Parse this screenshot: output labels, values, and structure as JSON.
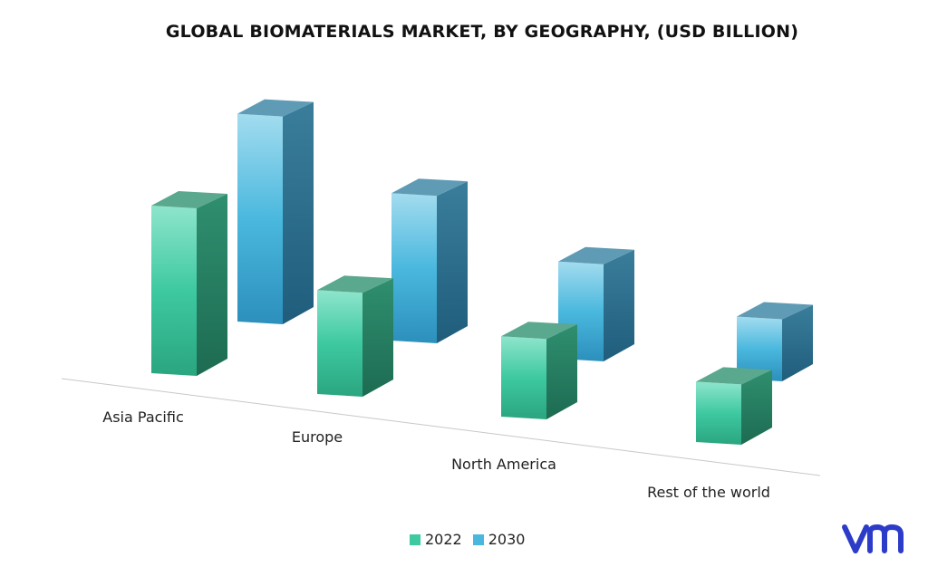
{
  "chart_data": {
    "type": "bar",
    "title": "GLOBAL BIOMATERIALS MARKET, BY GEOGRAPHY, (USD BILLION)",
    "categories": [
      "Asia Pacific",
      "Europe",
      "North America",
      "Rest of the world"
    ],
    "series": [
      {
        "name": "2022",
        "values": [
          100,
          62,
          48,
          36
        ],
        "color": "#3ec9a1"
      },
      {
        "name": "2030",
        "values": [
          124,
          88,
          58,
          37
        ],
        "color": "#4ab8de"
      }
    ],
    "xlabel": "",
    "ylabel": "",
    "grid": false,
    "legend_position": "bottom"
  },
  "brand": {
    "logo_text": "vm",
    "color": "#2c3cc8"
  }
}
